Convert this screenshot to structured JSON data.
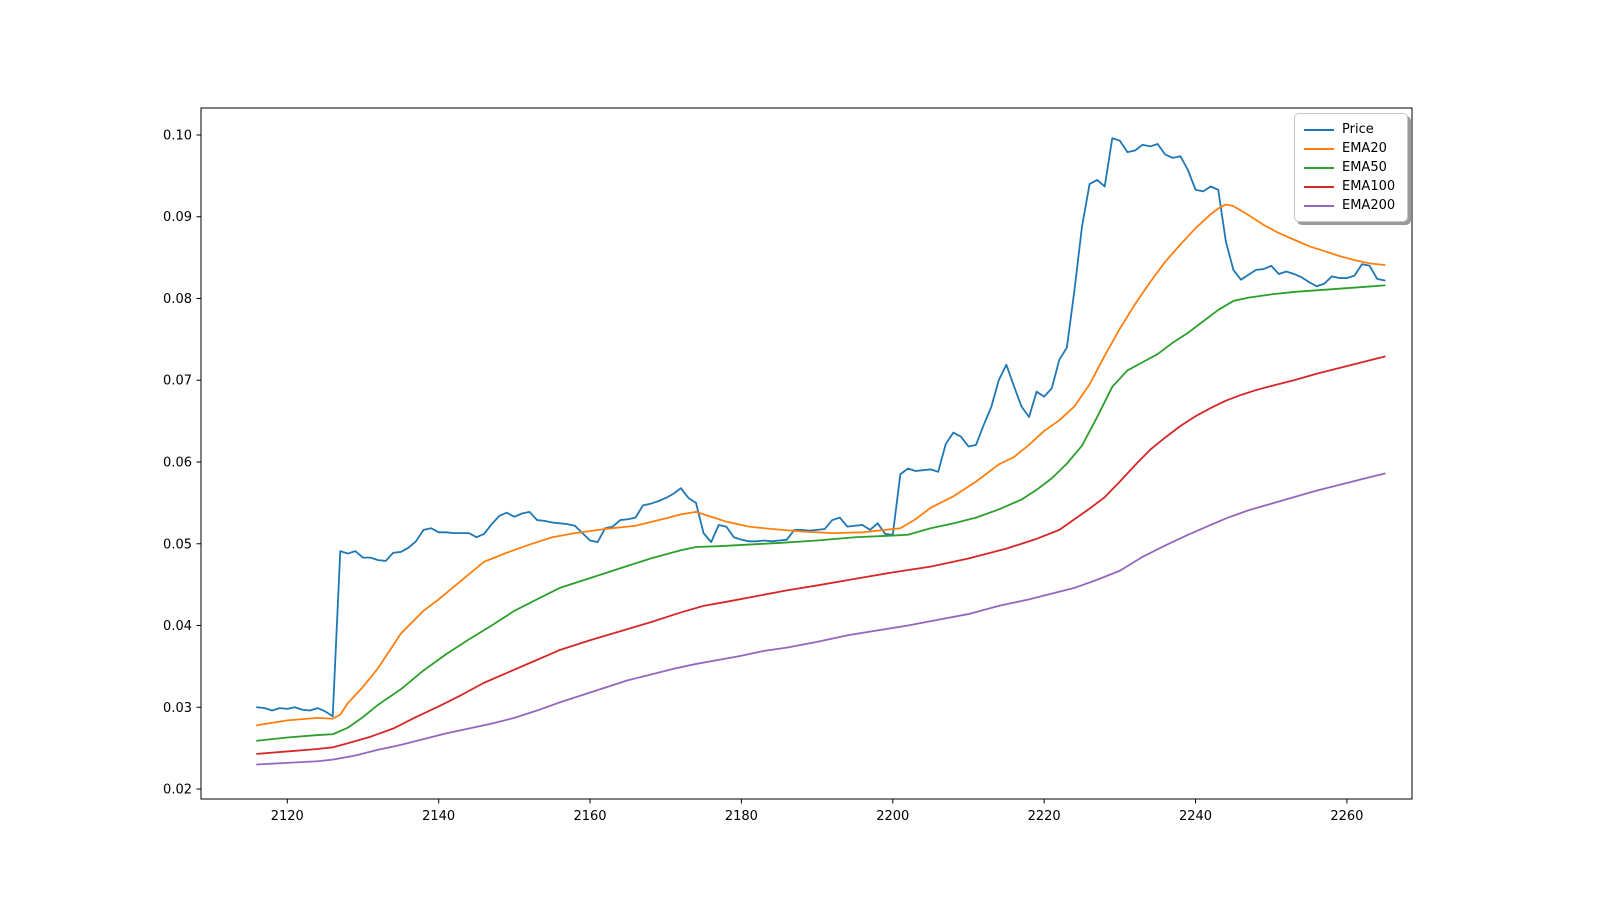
{
  "legend": {
    "items": [
      {
        "label": "Price",
        "color": "#1f77b4"
      },
      {
        "label": "EMA20",
        "color": "#ff7f0e"
      },
      {
        "label": "EMA50",
        "color": "#2ca02c"
      },
      {
        "label": "EMA100",
        "color": "#d62728"
      },
      {
        "label": "EMA200",
        "color": "#9467bd"
      }
    ]
  },
  "chart_data": {
    "type": "line",
    "title": "",
    "xlabel": "",
    "ylabel": "",
    "grid": false,
    "legend_position": "upper right",
    "xlim": [
      2108.6,
      2268.6
    ],
    "ylim": [
      0.01878,
      0.1033
    ],
    "xticks": [
      2120,
      2140,
      2160,
      2180,
      2200,
      2220,
      2240,
      2260
    ],
    "yticks": [
      0.02,
      0.03,
      0.04,
      0.05,
      0.06,
      0.07,
      0.08,
      0.09,
      0.1
    ],
    "ytick_labels": [
      "0.02",
      "0.03",
      "0.04",
      "0.05",
      "0.06",
      "0.07",
      "0.08",
      "0.09",
      "0.10"
    ],
    "series": [
      {
        "name": "Price",
        "color": "#1f77b4",
        "x_start": 2116,
        "x_step": 1,
        "values": [
          0.03,
          0.0299,
          0.0296,
          0.0299,
          0.0298,
          0.03,
          0.0297,
          0.0296,
          0.0299,
          0.0295,
          0.0289,
          0.0491,
          0.0488,
          0.0491,
          0.0483,
          0.0483,
          0.048,
          0.0479,
          0.0489,
          0.049,
          0.0495,
          0.0503,
          0.0517,
          0.0519,
          0.0514,
          0.0514,
          0.0513,
          0.0513,
          0.0513,
          0.0508,
          0.0512,
          0.0524,
          0.0534,
          0.0538,
          0.0533,
          0.0537,
          0.0539,
          0.0529,
          0.0528,
          0.0526,
          0.0525,
          0.0524,
          0.0522,
          0.0513,
          0.0504,
          0.0502,
          0.0519,
          0.0521,
          0.0529,
          0.053,
          0.0532,
          0.0547,
          0.0549,
          0.0552,
          0.0556,
          0.0561,
          0.0568,
          0.0556,
          0.055,
          0.0513,
          0.0502,
          0.0523,
          0.0521,
          0.0508,
          0.0505,
          0.0503,
          0.0503,
          0.0504,
          0.0503,
          0.0504,
          0.0505,
          0.0517,
          0.0517,
          0.0516,
          0.0517,
          0.0518,
          0.0529,
          0.0532,
          0.0521,
          0.0522,
          0.0523,
          0.0517,
          0.0525,
          0.0512,
          0.0511,
          0.0585,
          0.0592,
          0.0589,
          0.059,
          0.0591,
          0.0588,
          0.0622,
          0.0636,
          0.0631,
          0.0619,
          0.0621,
          0.0645,
          0.0667,
          0.07,
          0.0719,
          0.0693,
          0.0668,
          0.0655,
          0.0686,
          0.068,
          0.069,
          0.0725,
          0.074,
          0.081,
          0.0888,
          0.094,
          0.0945,
          0.0937,
          0.0996,
          0.0993,
          0.0979,
          0.0981,
          0.0988,
          0.0986,
          0.0989,
          0.0976,
          0.0972,
          0.0974,
          0.0957,
          0.0933,
          0.0931,
          0.0937,
          0.0933,
          0.087,
          0.0835,
          0.0823,
          0.0829,
          0.0835,
          0.0836,
          0.084,
          0.083,
          0.0833,
          0.083,
          0.0826,
          0.082,
          0.0815,
          0.0818,
          0.0827,
          0.0825,
          0.0825,
          0.0828,
          0.0842,
          0.084,
          0.0824,
          0.0822
        ]
      },
      {
        "name": "EMA20",
        "color": "#ff7f0e",
        "points": [
          [
            2116,
            0.0278
          ],
          [
            2120,
            0.0284
          ],
          [
            2124,
            0.0287
          ],
          [
            2126,
            0.0286
          ],
          [
            2127,
            0.0291
          ],
          [
            2128,
            0.0305
          ],
          [
            2130,
            0.0325
          ],
          [
            2132,
            0.0348
          ],
          [
            2135,
            0.039
          ],
          [
            2138,
            0.0418
          ],
          [
            2140,
            0.0432
          ],
          [
            2143,
            0.0455
          ],
          [
            2146,
            0.0478
          ],
          [
            2149,
            0.0489
          ],
          [
            2152,
            0.0499
          ],
          [
            2155,
            0.0508
          ],
          [
            2158,
            0.0513
          ],
          [
            2162,
            0.0518
          ],
          [
            2166,
            0.0522
          ],
          [
            2170,
            0.0531
          ],
          [
            2172,
            0.0536
          ],
          [
            2174,
            0.0539
          ],
          [
            2176,
            0.0533
          ],
          [
            2178,
            0.0527
          ],
          [
            2181,
            0.0521
          ],
          [
            2184,
            0.0518
          ],
          [
            2188,
            0.0515
          ],
          [
            2192,
            0.0513
          ],
          [
            2196,
            0.0514
          ],
          [
            2199,
            0.0517
          ],
          [
            2201,
            0.0519
          ],
          [
            2203,
            0.053
          ],
          [
            2205,
            0.0544
          ],
          [
            2208,
            0.0558
          ],
          [
            2211,
            0.0576
          ],
          [
            2214,
            0.0597
          ],
          [
            2216,
            0.0606
          ],
          [
            2218,
            0.0621
          ],
          [
            2220,
            0.0638
          ],
          [
            2222,
            0.0651
          ],
          [
            2224,
            0.0668
          ],
          [
            2226,
            0.0695
          ],
          [
            2228,
            0.073
          ],
          [
            2230,
            0.0763
          ],
          [
            2232,
            0.0793
          ],
          [
            2234,
            0.082
          ],
          [
            2236,
            0.0845
          ],
          [
            2238,
            0.0866
          ],
          [
            2240,
            0.0886
          ],
          [
            2242,
            0.0903
          ],
          [
            2243,
            0.091
          ],
          [
            2244,
            0.0915
          ],
          [
            2245,
            0.0913
          ],
          [
            2247,
            0.0902
          ],
          [
            2249,
            0.089
          ],
          [
            2251,
            0.088
          ],
          [
            2253,
            0.0872
          ],
          [
            2255,
            0.0864
          ],
          [
            2257,
            0.0858
          ],
          [
            2259,
            0.0852
          ],
          [
            2261,
            0.0847
          ],
          [
            2263,
            0.0843
          ],
          [
            2265,
            0.0841
          ]
        ]
      },
      {
        "name": "EMA50",
        "color": "#2ca02c",
        "points": [
          [
            2116,
            0.0259
          ],
          [
            2120,
            0.0263
          ],
          [
            2124,
            0.0266
          ],
          [
            2126,
            0.0267
          ],
          [
            2128,
            0.0275
          ],
          [
            2130,
            0.0288
          ],
          [
            2132,
            0.0303
          ],
          [
            2135,
            0.0322
          ],
          [
            2138,
            0.0345
          ],
          [
            2141,
            0.0365
          ],
          [
            2144,
            0.0383
          ],
          [
            2147,
            0.04
          ],
          [
            2150,
            0.0418
          ],
          [
            2153,
            0.0432
          ],
          [
            2156,
            0.0446
          ],
          [
            2160,
            0.0458
          ],
          [
            2164,
            0.047
          ],
          [
            2168,
            0.0482
          ],
          [
            2172,
            0.0492
          ],
          [
            2174,
            0.0496
          ],
          [
            2177,
            0.0497
          ],
          [
            2181,
            0.0499
          ],
          [
            2185,
            0.0501
          ],
          [
            2190,
            0.0504
          ],
          [
            2195,
            0.0508
          ],
          [
            2200,
            0.051
          ],
          [
            2202,
            0.0511
          ],
          [
            2205,
            0.0519
          ],
          [
            2208,
            0.0525
          ],
          [
            2211,
            0.0532
          ],
          [
            2214,
            0.0542
          ],
          [
            2217,
            0.0554
          ],
          [
            2219,
            0.0566
          ],
          [
            2221,
            0.058
          ],
          [
            2223,
            0.0598
          ],
          [
            2225,
            0.062
          ],
          [
            2227,
            0.0655
          ],
          [
            2229,
            0.0692
          ],
          [
            2231,
            0.0712
          ],
          [
            2233,
            0.0722
          ],
          [
            2235,
            0.0732
          ],
          [
            2237,
            0.0746
          ],
          [
            2239,
            0.0758
          ],
          [
            2241,
            0.0772
          ],
          [
            2243,
            0.0786
          ],
          [
            2245,
            0.0797
          ],
          [
            2247,
            0.0801
          ],
          [
            2250,
            0.0805
          ],
          [
            2253,
            0.0808
          ],
          [
            2256,
            0.081
          ],
          [
            2259,
            0.0812
          ],
          [
            2262,
            0.0814
          ],
          [
            2265,
            0.0816
          ]
        ]
      },
      {
        "name": "EMA100",
        "color": "#d62728",
        "points": [
          [
            2116,
            0.0243
          ],
          [
            2120,
            0.0246
          ],
          [
            2124,
            0.0249
          ],
          [
            2126,
            0.0251
          ],
          [
            2128,
            0.0256
          ],
          [
            2131,
            0.0264
          ],
          [
            2134,
            0.0274
          ],
          [
            2137,
            0.0288
          ],
          [
            2140,
            0.0301
          ],
          [
            2143,
            0.0315
          ],
          [
            2146,
            0.033
          ],
          [
            2149,
            0.0342
          ],
          [
            2152,
            0.0354
          ],
          [
            2156,
            0.037
          ],
          [
            2160,
            0.0382
          ],
          [
            2164,
            0.0393
          ],
          [
            2168,
            0.0404
          ],
          [
            2172,
            0.0416
          ],
          [
            2175,
            0.0424
          ],
          [
            2178,
            0.0429
          ],
          [
            2182,
            0.0436
          ],
          [
            2186,
            0.0443
          ],
          [
            2190,
            0.0449
          ],
          [
            2195,
            0.0457
          ],
          [
            2200,
            0.0465
          ],
          [
            2205,
            0.0472
          ],
          [
            2210,
            0.0482
          ],
          [
            2215,
            0.0494
          ],
          [
            2219,
            0.0506
          ],
          [
            2222,
            0.0517
          ],
          [
            2224,
            0.053
          ],
          [
            2226,
            0.0543
          ],
          [
            2228,
            0.0557
          ],
          [
            2230,
            0.0576
          ],
          [
            2232,
            0.0596
          ],
          [
            2234,
            0.0615
          ],
          [
            2236,
            0.063
          ],
          [
            2238,
            0.0644
          ],
          [
            2240,
            0.0656
          ],
          [
            2242,
            0.0666
          ],
          [
            2244,
            0.0675
          ],
          [
            2246,
            0.0682
          ],
          [
            2248,
            0.0688
          ],
          [
            2250,
            0.0693
          ],
          [
            2253,
            0.07
          ],
          [
            2256,
            0.0708
          ],
          [
            2259,
            0.0715
          ],
          [
            2262,
            0.0722
          ],
          [
            2265,
            0.0729
          ]
        ]
      },
      {
        "name": "EMA200",
        "color": "#9467bd",
        "points": [
          [
            2116,
            0.023
          ],
          [
            2120,
            0.0232
          ],
          [
            2124,
            0.0234
          ],
          [
            2126,
            0.0236
          ],
          [
            2129,
            0.0241
          ],
          [
            2132,
            0.0248
          ],
          [
            2135,
            0.0254
          ],
          [
            2138,
            0.0261
          ],
          [
            2141,
            0.0268
          ],
          [
            2144,
            0.0274
          ],
          [
            2147,
            0.028
          ],
          [
            2150,
            0.0287
          ],
          [
            2153,
            0.0296
          ],
          [
            2156,
            0.0306
          ],
          [
            2159,
            0.0315
          ],
          [
            2162,
            0.0324
          ],
          [
            2165,
            0.0333
          ],
          [
            2168,
            0.034
          ],
          [
            2171,
            0.0347
          ],
          [
            2174,
            0.0353
          ],
          [
            2177,
            0.0358
          ],
          [
            2180,
            0.0363
          ],
          [
            2183,
            0.0369
          ],
          [
            2186,
            0.0373
          ],
          [
            2190,
            0.038
          ],
          [
            2194,
            0.0388
          ],
          [
            2198,
            0.0394
          ],
          [
            2202,
            0.04
          ],
          [
            2206,
            0.0407
          ],
          [
            2210,
            0.0414
          ],
          [
            2214,
            0.0424
          ],
          [
            2218,
            0.0432
          ],
          [
            2221,
            0.0439
          ],
          [
            2224,
            0.0446
          ],
          [
            2227,
            0.0456
          ],
          [
            2230,
            0.0467
          ],
          [
            2233,
            0.0484
          ],
          [
            2236,
            0.0498
          ],
          [
            2239,
            0.0511
          ],
          [
            2242,
            0.0523
          ],
          [
            2244,
            0.0531
          ],
          [
            2247,
            0.0541
          ],
          [
            2250,
            0.0549
          ],
          [
            2253,
            0.0557
          ],
          [
            2256,
            0.0565
          ],
          [
            2259,
            0.0572
          ],
          [
            2262,
            0.0579
          ],
          [
            2265,
            0.0586
          ]
        ]
      }
    ]
  }
}
